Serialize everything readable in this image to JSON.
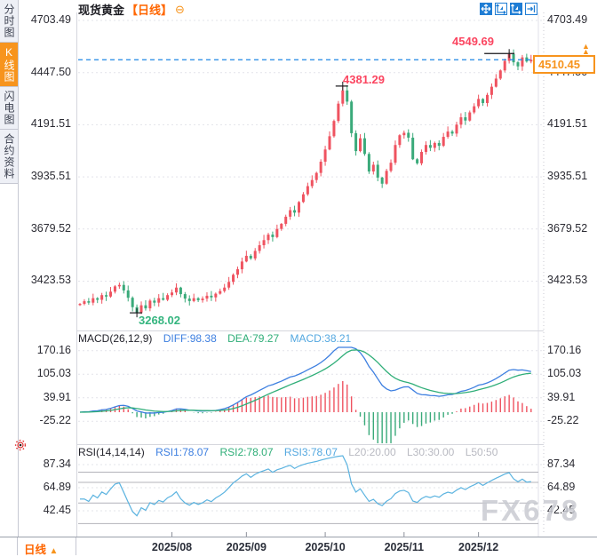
{
  "theme": {
    "accent_orange": "#f7941d",
    "title_tag": "#ff6600",
    "up_red": "#ef5360",
    "down_green": "#3aaa7a",
    "label_red": "#fb4560",
    "label_green": "#35b57f",
    "diff_blue": "#3d7fe0",
    "dea_green": "#2fae78",
    "macd_cyan": "#54a8e0",
    "rsi_line": "#5bb3e0",
    "dashed_blue": "#1e88e5",
    "icon_blue": "#1f7dd4",
    "grid": "#e3e4ea",
    "level_line": "#b3b3ba",
    "watermark_color": "#c9cbd2"
  },
  "sidebar": {
    "tabs": [
      {
        "label": "分时图",
        "active": false
      },
      {
        "label": "K线图",
        "active": true
      },
      {
        "label": "闪电图",
        "active": false
      },
      {
        "label": "合约资料",
        "active": false
      }
    ]
  },
  "header": {
    "symbol": "现货黄金",
    "period_tag": "【日线】",
    "collapse_icon": "⊖",
    "icons": [
      "move-icon",
      "scale-x-axis-icon",
      "scale-y-axis-icon",
      "exit-right-icon"
    ]
  },
  "macd_legend": {
    "title": "MACD(26,12,9)",
    "diff": "DIFF:98.38",
    "dea": "DEA:79.27",
    "macd": "MACD:38.21"
  },
  "rsi_legend": {
    "title": "RSI(14,14,14)",
    "rsi1": "RSI1:78.07",
    "rsi2": "RSI2:78.07",
    "rsi3": "RSI3:78.07",
    "l20": "L20:20.00",
    "l30": "L30:30.00",
    "l50": "L50:50"
  },
  "price_marks": {
    "high": "4549.69",
    "peak": "4381.29",
    "low": "3268.02",
    "current": "4510.45"
  },
  "footer": {
    "period_label": "日线",
    "arrow": "▲"
  },
  "watermark": "FX678",
  "chart_data": {
    "type": "candlestick",
    "title": "现货黄金 日线",
    "panels": [
      "price",
      "MACD(26,12,9)",
      "RSI(14,14,14)"
    ],
    "price_axis_ticks": [
      4703.49,
      4447.5,
      4191.51,
      3935.51,
      3679.52,
      3423.53
    ],
    "macd_axis_ticks": [
      170.16,
      105.03,
      39.91,
      -25.22
    ],
    "rsi_axis_ticks": [
      87.34,
      64.89,
      42.45
    ],
    "rsi_levels": [
      80,
      70,
      50,
      30
    ],
    "x_labels": [
      "2025/08",
      "2025/09",
      "2025/10",
      "2025/11",
      "2025/12"
    ],
    "x_label_indices": [
      21,
      38,
      56,
      74,
      91
    ],
    "current_price": 4510.45,
    "macd_values": {
      "diff": 98.38,
      "dea": 79.27,
      "macd": 38.21
    },
    "rsi_values": {
      "rsi1": 78.07,
      "rsi2": 78.07,
      "rsi3": 78.07
    },
    "closes": [
      3312,
      3325,
      3318,
      3340,
      3332,
      3355,
      3348,
      3372,
      3398,
      3405,
      3378,
      3342,
      3296,
      3270,
      3305,
      3290,
      3328,
      3318,
      3340,
      3332,
      3355,
      3368,
      3392,
      3360,
      3338,
      3326,
      3340,
      3330,
      3338,
      3352,
      3344,
      3362,
      3375,
      3392,
      3420,
      3455,
      3482,
      3520,
      3548,
      3535,
      3572,
      3600,
      3625,
      3652,
      3640,
      3680,
      3705,
      3740,
      3772,
      3760,
      3812,
      3850,
      3890,
      3920,
      3955,
      4010,
      4070,
      4135,
      4210,
      4295,
      4360,
      4305,
      4150,
      4062,
      4125,
      4048,
      3962,
      3995,
      3932,
      3902,
      3965,
      4005,
      4092,
      4140,
      4152,
      4128,
      4022,
      4002,
      4058,
      4092,
      4078,
      4102,
      4088,
      4132,
      4158,
      4148,
      4192,
      4228,
      4212,
      4252,
      4282,
      4318,
      4298,
      4338,
      4378,
      4418,
      4458,
      4505,
      4538,
      4498,
      4478,
      4522,
      4502,
      4510.45
    ],
    "marked_points": {
      "low_index": 13,
      "low": 3268.02,
      "peak_index": 60,
      "peak": 4381.29,
      "high_index": 98,
      "high": 4549.69
    }
  }
}
